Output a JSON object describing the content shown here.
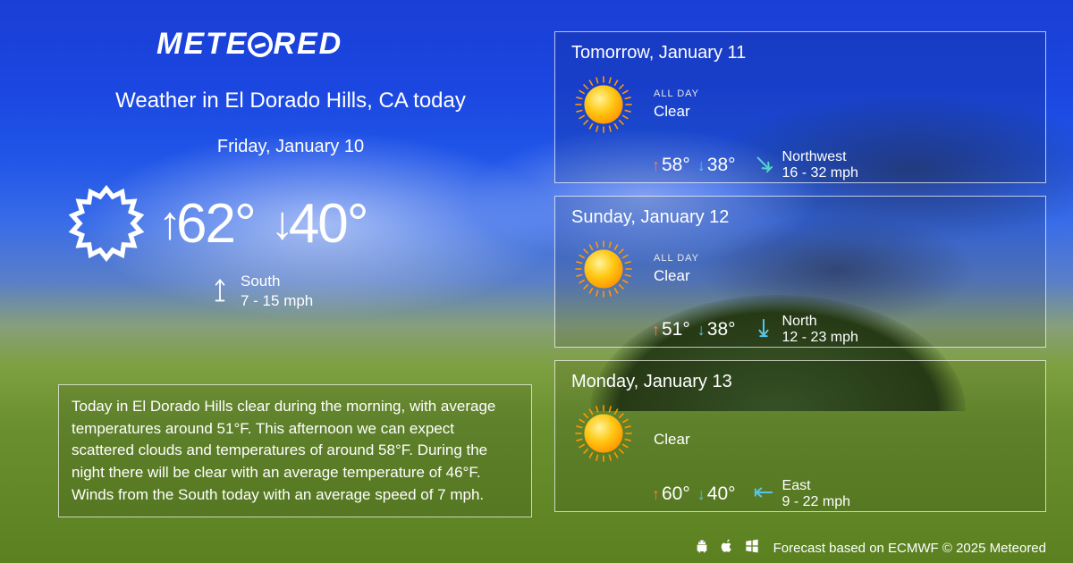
{
  "brand": "METEORED",
  "title": "Weather in El Dorado Hills, CA today",
  "today": {
    "date_label": "Friday, January 10",
    "high": "62°",
    "low": "40°",
    "wind_dir": "South",
    "wind_speed": "7 - 15 mph",
    "icon": "clear-outline"
  },
  "description": "Today in El Dorado Hills clear during the morning, with average temperatures around 51°F. This afternoon we can expect scattered clouds and temperatures of around 58°F. During the night there will be clear with an average temperature of 46°F. Winds from the South today with an average speed of 7 mph.",
  "forecast": [
    {
      "date_label": "Tomorrow, January 11",
      "period": "ALL DAY",
      "condition": "Clear",
      "high": "58°",
      "low": "38°",
      "wind_dir": "Northwest",
      "wind_speed": "16 - 32 mph",
      "wind_arrow_color": "#4fd6c8",
      "wind_arrow_rot": 135
    },
    {
      "date_label": "Sunday, January 12",
      "period": "ALL DAY",
      "condition": "Clear",
      "high": "51°",
      "low": "38°",
      "wind_dir": "North",
      "wind_speed": "12 - 23 mph",
      "wind_arrow_color": "#58c5e8",
      "wind_arrow_rot": 180
    },
    {
      "date_label": "Monday, January 13",
      "period": "",
      "condition": "Clear",
      "high": "60°",
      "low": "40°",
      "wind_dir": "East",
      "wind_speed": "9 - 22 mph",
      "wind_arrow_color": "#58c5e8",
      "wind_arrow_rot": 270
    }
  ],
  "footer": {
    "text": "Forecast based on ECMWF © 2025 Meteored"
  },
  "colors": {
    "hi_arrow": "#ff7a4d",
    "lo_arrow": "#58c5e8",
    "sun_fill": "#ffc815",
    "sun_edge": "#ff9a00",
    "card_border": "rgba(255,255,255,0.7)"
  }
}
